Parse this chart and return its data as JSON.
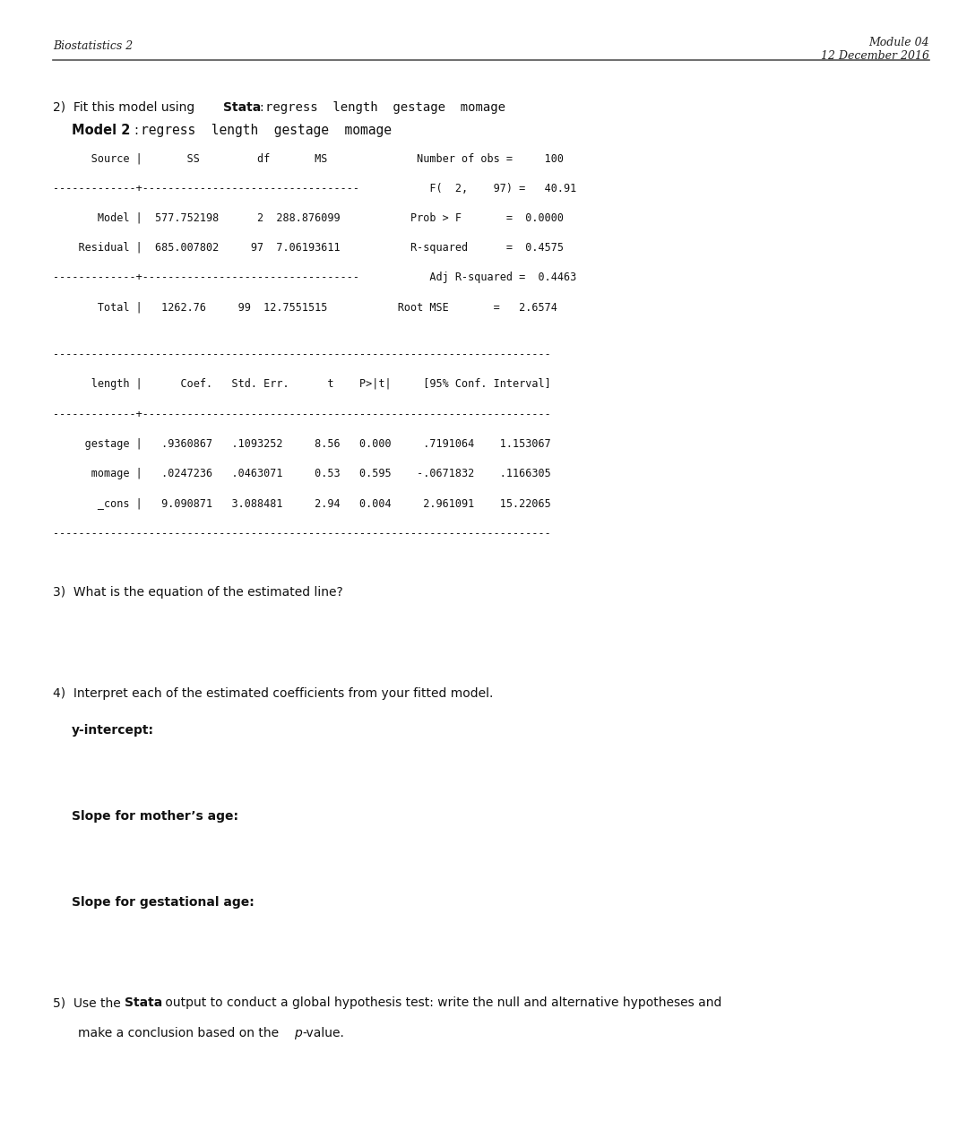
{
  "header_left": "Biostatistics 2",
  "header_right_line1": "Module 04",
  "header_right_line2": "12 December 2016",
  "background_color": "#ffffff",
  "text_color": "#000000",
  "q2_intro": "2)  Fit this model using ",
  "q2_stata_bold": "Stata",
  "q2_intro2": ": ",
  "q2_code": "regress  length  gestage  momage",
  "model2_label_bold": "Model 2",
  "model2_label_colon": ": ",
  "model2_code": "regress  length  gestage  momage",
  "stata_output": [
    "      Source |       SS         df       MS              Number of obs =     100",
    "-------------+----------------------------------           F(  2,    97) =   40.91",
    "       Model |  577.752198      2  288.876099           Prob > F       =  0.0000",
    "    Residual |  685.007802     97  7.06193611           R-squared      =  0.4575",
    "-------------+----------------------------------           Adj R-squared =  0.4463",
    "       Total |   1262.76     99  12.7551515           Root MSE       =   2.6574"
  ],
  "stata_output2": [
    "------------------------------------------------------------------------------",
    "      length |      Coef.   Std. Err.      t    P>|t|     [95% Conf. Interval]",
    "-------------+----------------------------------------------------------------",
    "     gestage |   .9360867   .1093252     8.56   0.000     .7191064    1.153067",
    "      momage |   .0247236   .0463071     0.53   0.595    -.0671832    .1166305",
    "       _cons |   9.090871   3.088481     2.94   0.004     2.961091    15.22065",
    "------------------------------------------------------------------------------"
  ],
  "q3_text": "3)  What is the equation of the estimated line?",
  "q4_text": "4)  Interpret each of the estimated coefficients from your fitted model.",
  "q4_yintercept_bold": "y-intercept:",
  "q4_slope_mother_bold": "Slope for mother’s age:",
  "q4_slope_gestational_bold": "Slope for gestational age:",
  "q5_intro": "5)  Use the ",
  "q5_stata_bold": "Stata",
  "q5_intro2": " output to conduct a global hypothesis test: write the null and alternative hypotheses and",
  "q5_line2": "     make a conclusion based on the ",
  "q5_pvalue_italic": "p",
  "q5_line2_end": "-value."
}
